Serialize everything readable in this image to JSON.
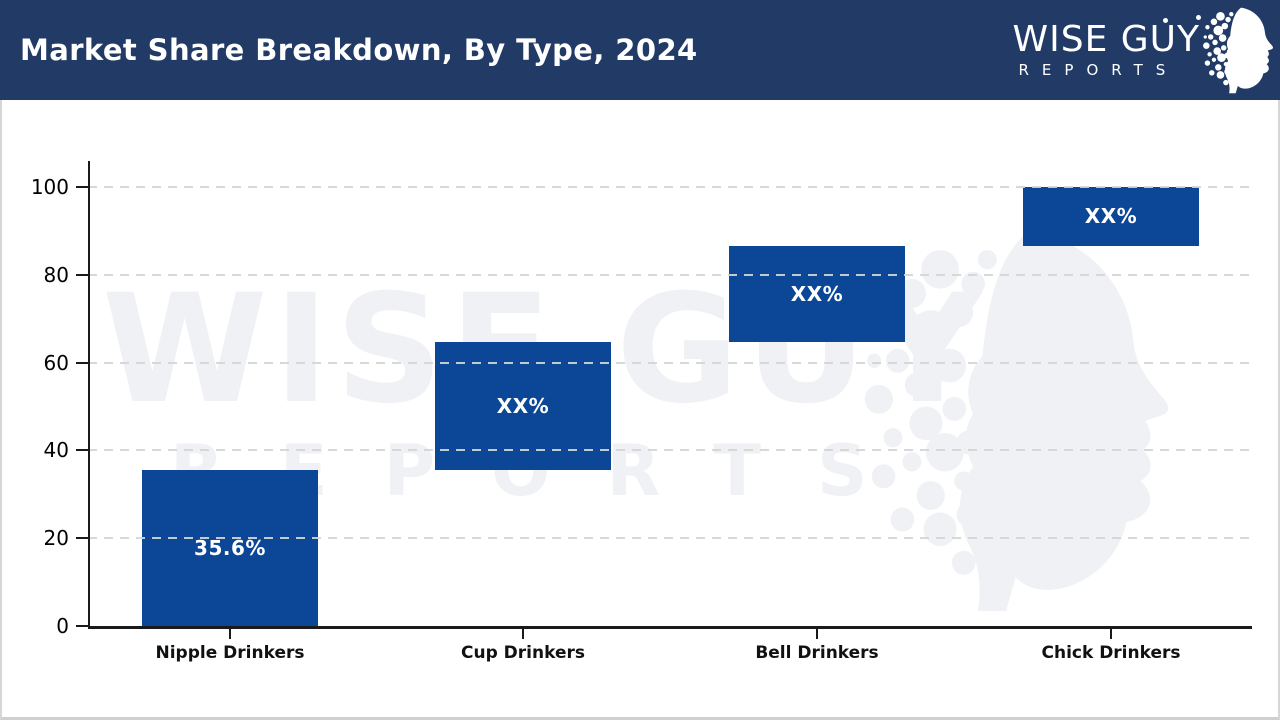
{
  "header": {
    "title": "Market Share Breakdown, By Type, 2024",
    "background": "#213A66",
    "logo": {
      "line1": "WISE GUY",
      "line2": "REPORTS"
    }
  },
  "watermark": {
    "line1": "WISE GUY",
    "line2": "REPORTS"
  },
  "chart_data": {
    "type": "bar",
    "subtype": "waterfall",
    "title": "Market Share Breakdown, By Type, 2024",
    "xlabel": "",
    "ylabel": "",
    "categories": [
      "Nipple Drinkers",
      "Cup Drinkers",
      "Bell Drinkers",
      "Chick Drinkers"
    ],
    "segments": [
      {
        "category": "Nipple Drinkers",
        "start": 0,
        "end": 35.6,
        "label": "35.6%"
      },
      {
        "category": "Cup Drinkers",
        "start": 35.6,
        "end": 64.7,
        "label": "XX%"
      },
      {
        "category": "Bell Drinkers",
        "start": 64.7,
        "end": 86.6,
        "label": "XX%"
      },
      {
        "category": "Chick Drinkers",
        "start": 86.6,
        "end": 100,
        "label": "XX%"
      }
    ],
    "ylim": [
      0,
      100
    ],
    "yticks": [
      0,
      20,
      40,
      60,
      80,
      100
    ],
    "grid": "horizontal-dashed",
    "legend": "none",
    "bar_color": "#0B4697",
    "label_color": "#ffffff",
    "grid_color": "#d9d9d9",
    "axis_color": "#1a1a1a"
  }
}
